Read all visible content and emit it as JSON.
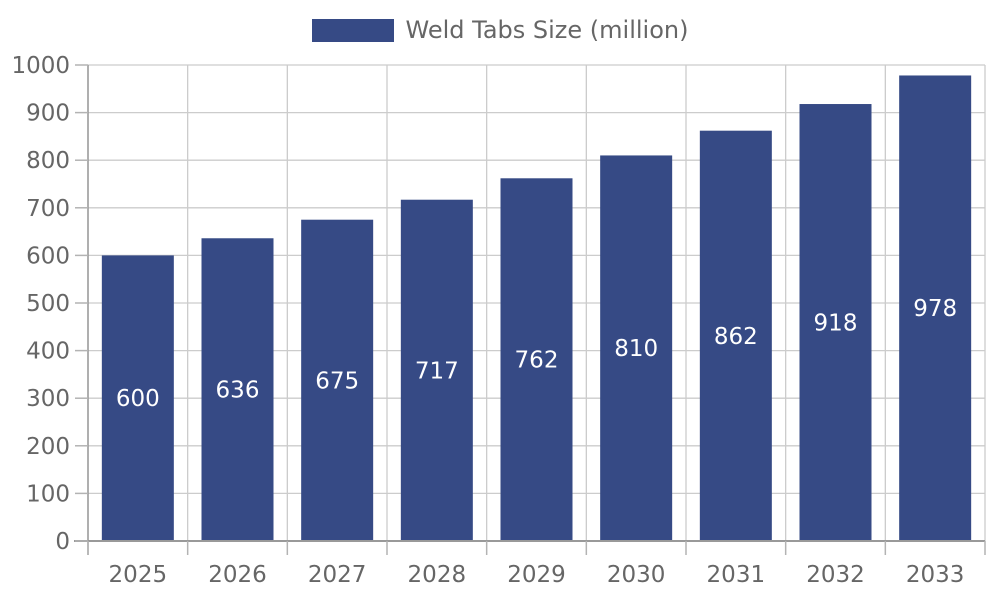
{
  "page": {
    "background": "#ffffff"
  },
  "legend": {
    "label": "Weld Tabs Size (million)"
  },
  "chart_data": {
    "type": "bar",
    "title": "Weld Tabs Size (million)",
    "categories": [
      "2025",
      "2026",
      "2027",
      "2028",
      "2029",
      "2030",
      "2031",
      "2032",
      "2033"
    ],
    "values": [
      600,
      636,
      675,
      717,
      762,
      810,
      862,
      918,
      978
    ],
    "value_labels": [
      "600",
      "636",
      "675",
      "717",
      "762",
      "810",
      "862",
      "918",
      "978"
    ],
    "yticks": [
      "0",
      "100",
      "200",
      "300",
      "400",
      "500",
      "600",
      "700",
      "800",
      "900",
      "1000"
    ],
    "ylim": [
      0,
      1000
    ],
    "ytick_step": 100,
    "xlabel": "",
    "ylabel": "",
    "legend_position": "top-center",
    "grid": true,
    "value_label_position": "inside-center",
    "colors": {
      "bar": "#364A85",
      "value_label": "#ffffff",
      "gridline": "#cccccc",
      "axis_line": "#999999",
      "tick_mark": "#b3b3b3",
      "tick_label": "#666666",
      "legend_text": "#666666"
    }
  }
}
